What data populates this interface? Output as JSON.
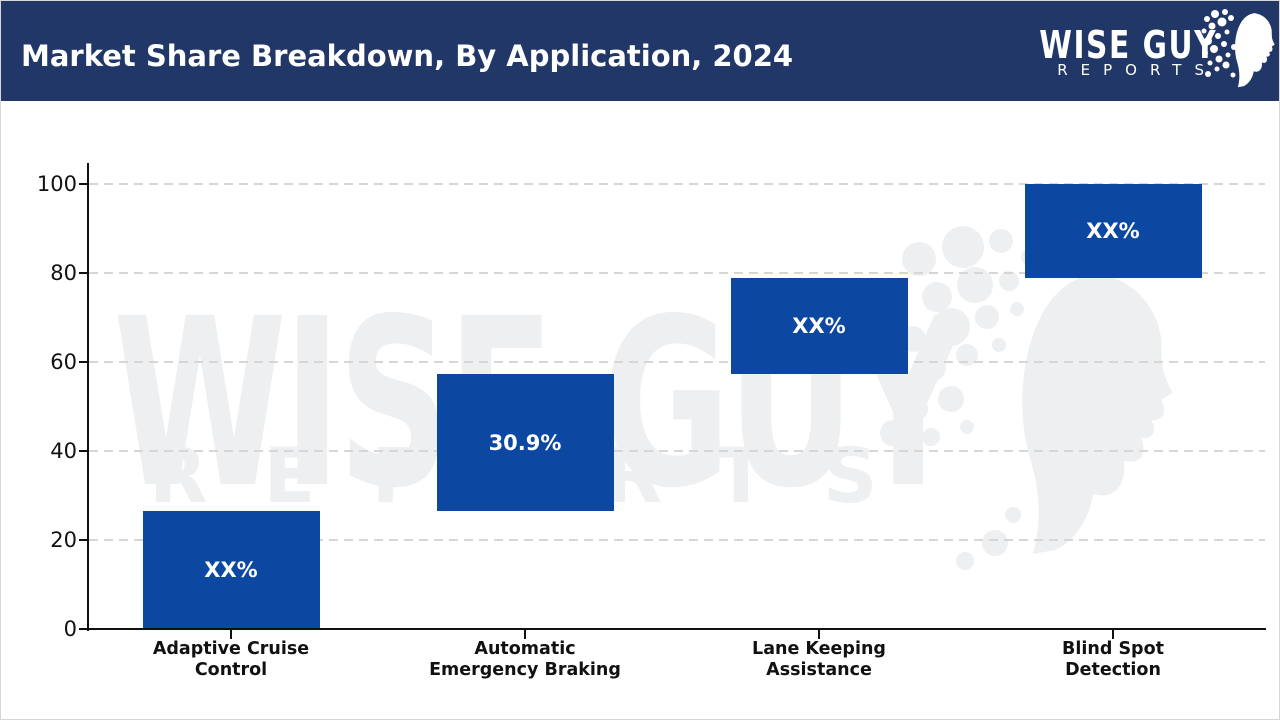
{
  "header": {
    "title": "Market Share Breakdown, By Application, 2024",
    "background": "#213767",
    "text_color": "#ffffff",
    "logo": {
      "name": "WISE GUY",
      "tagline": "REPORTS",
      "icon": "dots-face-profile"
    }
  },
  "watermark": {
    "line1": "WISE GUY",
    "line2": "REPORTS",
    "color": "#edeff1",
    "icon": "dots-face-profile"
  },
  "chart_data": {
    "type": "bar",
    "subtype": "waterfall",
    "title": "Market Share Breakdown, By Application, 2024",
    "categories": [
      "Adaptive Cruise\nControl",
      "Automatic\nEmergency Braking",
      "Lane Keeping\nAssistance",
      "Blind Spot\nDetection"
    ],
    "segments": [
      {
        "category": "Adaptive Cruise Control",
        "start": 0,
        "end": 26.5,
        "label": "XX%"
      },
      {
        "category": "Automatic Emergency Braking",
        "start": 26.5,
        "end": 57.4,
        "label": "30.9%",
        "value": 30.9
      },
      {
        "category": "Lane Keeping Assistance",
        "start": 57.4,
        "end": 78.9,
        "label": "XX%"
      },
      {
        "category": "Blind Spot Detection",
        "start": 78.9,
        "end": 100,
        "label": "XX%"
      }
    ],
    "ylim": [
      0,
      100
    ],
    "yticks": [
      0,
      20,
      40,
      60,
      80,
      100
    ],
    "xlabel": "",
    "ylabel": "",
    "legend": "none",
    "grid": "dashed-horizontal",
    "bar_color": "#0c47a1",
    "bar_label_color": "#ffffff",
    "gridline_color": "#d6d6d6",
    "axis_color": "#111111"
  }
}
